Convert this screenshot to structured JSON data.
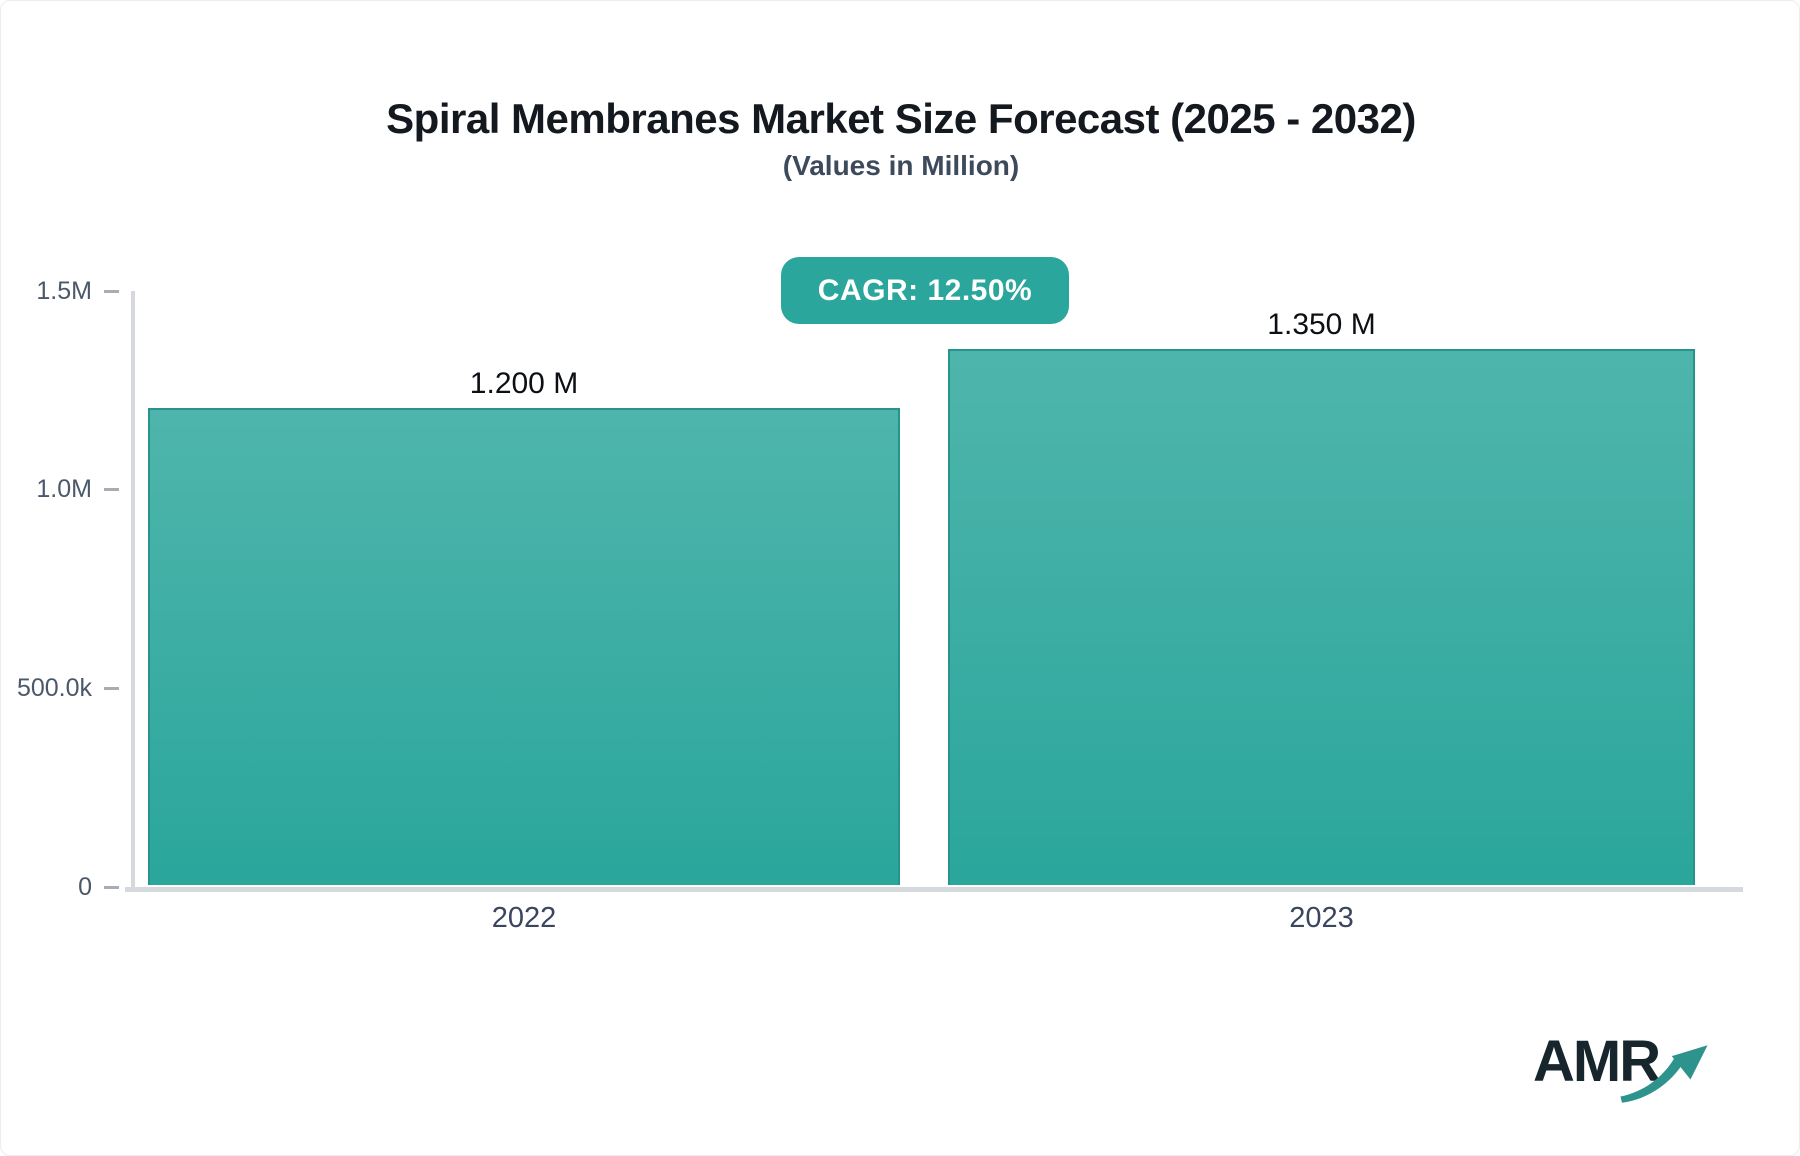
{
  "header": {
    "title": "Spiral Membranes Market Size Forecast (2025 - 2032)",
    "subtitle": "(Values in Million)"
  },
  "badge": {
    "label": "CAGR: 12.50%",
    "bg_color": "#2aa69c",
    "text_color": "#ffffff"
  },
  "logo": {
    "text": "AMR",
    "arrow_icon": "trending-up-arrow",
    "text_color": "#16262c",
    "arrow_color": "#2f938d"
  },
  "chart_data": {
    "type": "bar",
    "title": "Spiral Membranes Market Size Forecast (2025 - 2032)",
    "subtitle": "(Values in Million)",
    "unit": "Million",
    "cagr": "12.50%",
    "categories": [
      "2022",
      "2023"
    ],
    "values": [
      1200000,
      1350000
    ],
    "value_labels": [
      "1.200 M",
      "1.350 M"
    ],
    "ylim": [
      0,
      1500000
    ],
    "yticks": [
      {
        "value": 1500000,
        "label": "1.5M"
      },
      {
        "value": 1000000,
        "label": "1.0M"
      },
      {
        "value": 500000,
        "label": "500.0k"
      },
      {
        "value": 0,
        "label": "0"
      }
    ],
    "grid": false,
    "legend": "none",
    "bar_colors": {
      "top": "#4fb5ac",
      "bottom": "#2aa69b",
      "border": "#27948b"
    }
  }
}
